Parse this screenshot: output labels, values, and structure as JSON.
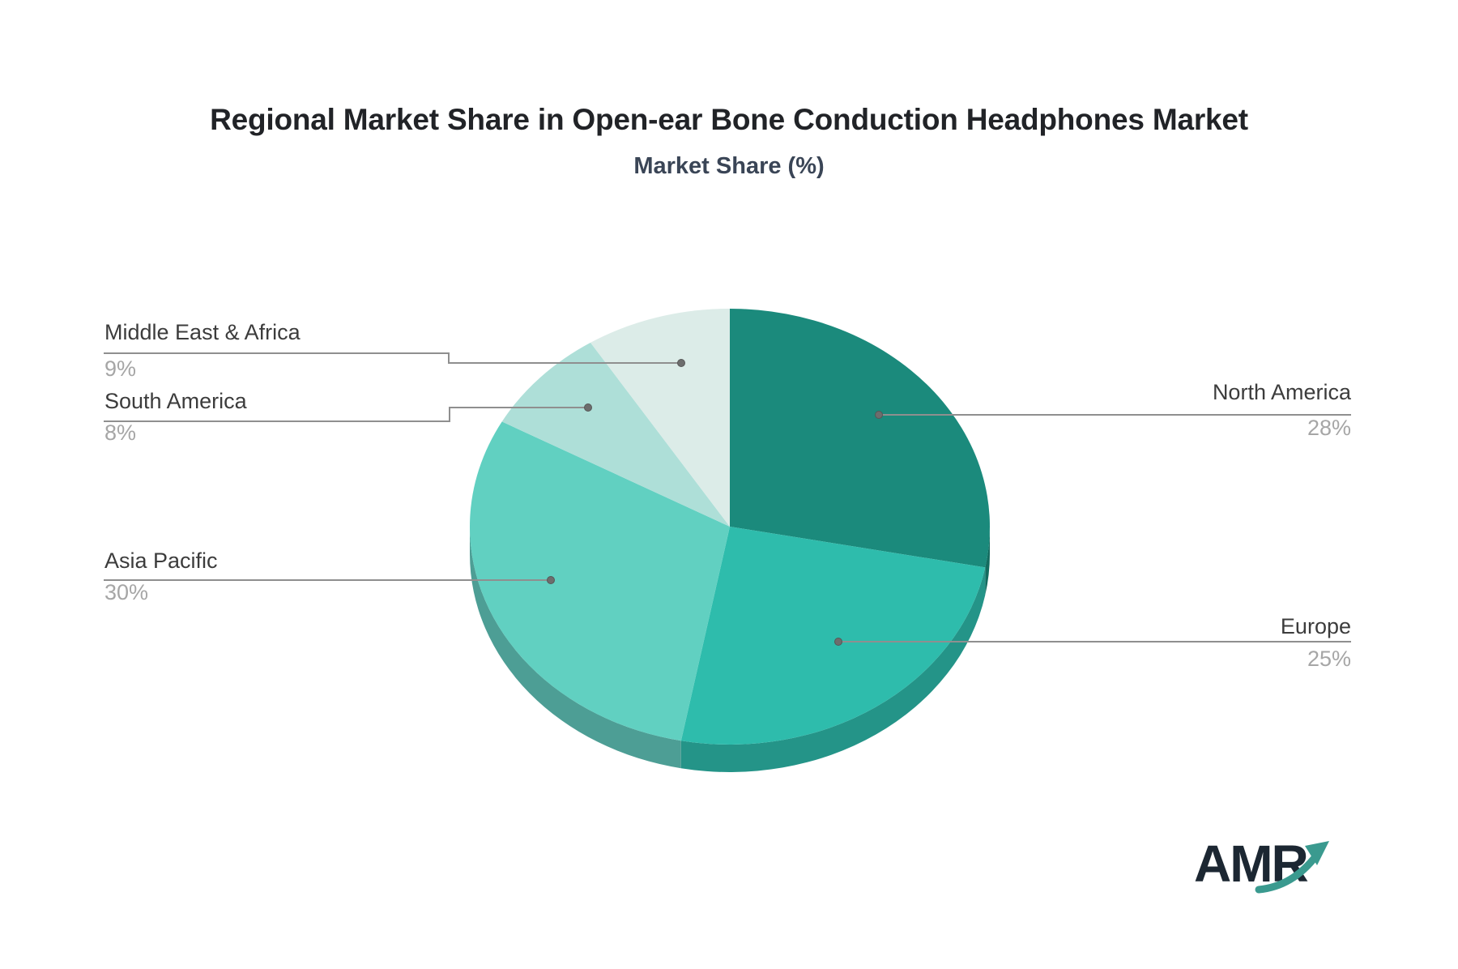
{
  "title": "Regional Market Share in Open-ear Bone Conduction Headphones Market",
  "subtitle": "Market Share (%)",
  "logo": {
    "text": "AMR"
  },
  "colors": {
    "leader_line": "#8f8f8f",
    "leader_dot": "#6d6d6d",
    "label_name": "#3c3c3c",
    "label_percent": "#a6a6a6",
    "title": "#212327",
    "subtitle": "#3a4556",
    "logo_text": "#1c2732",
    "logo_arrow": "#3a9a8f"
  },
  "chart_data": {
    "type": "pie",
    "title": "Regional Market Share in Open-ear Bone Conduction Headphones Market",
    "subtitle": "Market Share (%)",
    "unit": "%",
    "start_angle_deg": 0,
    "direction": "clockwise",
    "effect": "3d-depth",
    "legend_position": "none",
    "categories": [
      "North America",
      "Europe",
      "Asia Pacific",
      "South America",
      "Middle East & Africa"
    ],
    "values": [
      28,
      25,
      30,
      8,
      9
    ],
    "slices": [
      {
        "label": "North America",
        "value": 28,
        "pct": "28%",
        "color": "#1b8a7c",
        "wall_color": "#136b5f"
      },
      {
        "label": "Europe",
        "value": 25,
        "pct": "25%",
        "color": "#2ebcac",
        "wall_color": "#249488"
      },
      {
        "label": "Asia Pacific",
        "value": 30,
        "pct": "30%",
        "color": "#61d0c1",
        "wall_color": "#4d9e95"
      },
      {
        "label": "South America",
        "value": 8,
        "pct": "8%",
        "color": "#aedfd8",
        "wall_color": "#8cc5bd"
      },
      {
        "label": "Middle East & Africa",
        "value": 9,
        "pct": "9%",
        "color": "#dcece8",
        "wall_color": "#b8d4ce"
      }
    ]
  }
}
